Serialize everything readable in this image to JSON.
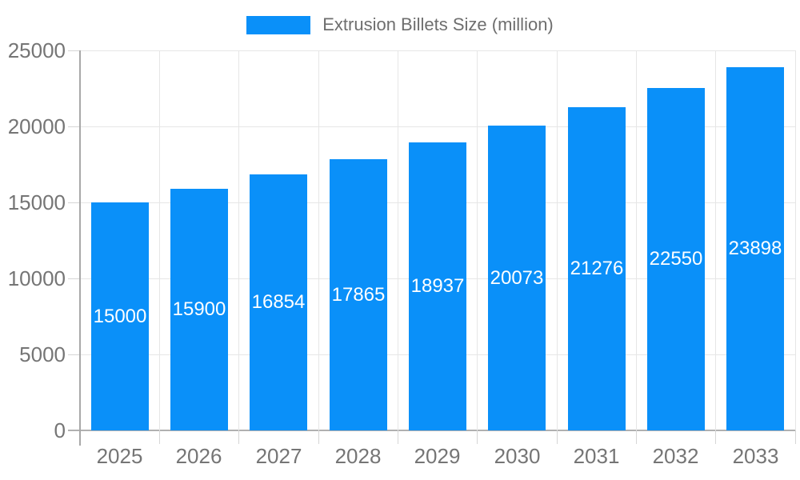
{
  "chart": {
    "legend_label": "Extrusion Billets Size (million)",
    "colors": {
      "bar": "#0A90F9",
      "grid_line": "#E6E6E6",
      "zero_line": "#B0B0B0",
      "axis_line": "#A8A8A8",
      "tick_mark": "#D6D6D6",
      "axis_text": "#757575",
      "legend_text": "#6E6E6E",
      "bar_label_text": "#FFFFFF",
      "background": "#FFFFFF"
    }
  },
  "chart_data": {
    "type": "bar",
    "title": "",
    "legend_entries": [
      "Extrusion Billets Size (million)"
    ],
    "legend_position": "top-center",
    "categories": [
      "2025",
      "2026",
      "2027",
      "2028",
      "2029",
      "2030",
      "2031",
      "2032",
      "2033"
    ],
    "series": [
      {
        "name": "Extrusion Billets Size (million)",
        "values": [
          15000,
          15900,
          16854,
          17865,
          18937,
          20073,
          21276,
          22550,
          23898
        ]
      }
    ],
    "bar_value_labels": [
      "15000",
      "15900",
      "16854",
      "17865",
      "18937",
      "20073",
      "21276",
      "22550",
      "23898"
    ],
    "xlabel": "",
    "ylabel": "",
    "ylim": [
      0,
      25000
    ],
    "y_ticks": [
      0,
      5000,
      10000,
      15000,
      20000,
      25000
    ],
    "y_tick_labels": [
      "0",
      "5000",
      "10000",
      "15000",
      "20000",
      "25000"
    ],
    "grid": true,
    "bar_labels_inside": true
  }
}
